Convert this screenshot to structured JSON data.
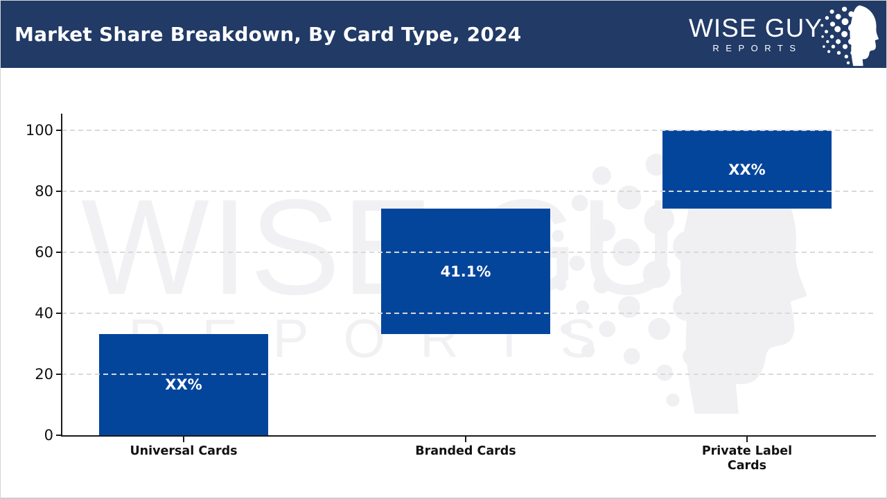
{
  "header": {
    "title": "Market Share Breakdown, By Card Type, 2024",
    "logo": {
      "wordmark": "WISE GUY",
      "subtitle": "REPORTS"
    }
  },
  "watermark": {
    "wordmark": "WISE GUY",
    "subtitle": "REPORTS"
  },
  "chart_data": {
    "type": "bar",
    "subtype": "stacked-range-waterfall",
    "title": "Market Share Breakdown, By Card Type, 2024",
    "categories": [
      "Universal Cards",
      "Branded Cards",
      "Private Label Cards"
    ],
    "segments": [
      {
        "category": "Universal Cards",
        "start": 0,
        "end": 33.2,
        "label": "XX%"
      },
      {
        "category": "Branded Cards",
        "start": 33.2,
        "end": 74.3,
        "label": "41.1%"
      },
      {
        "category": "Private Label Cards",
        "start": 74.3,
        "end": 100,
        "label": "XX%"
      }
    ],
    "yticks": [
      0,
      20,
      40,
      60,
      80,
      100
    ],
    "ylim": [
      0,
      105.5
    ],
    "xlabel": "",
    "ylabel": "",
    "grid": "horizontal-dashed",
    "legend": "none"
  },
  "colors": {
    "header_bg": "#213a66",
    "bar": "#04459c",
    "bar_label": "#ffffff",
    "grid": "#d9d9d9",
    "axis": "#1a1a1a",
    "watermark": "#f1f1f4"
  }
}
